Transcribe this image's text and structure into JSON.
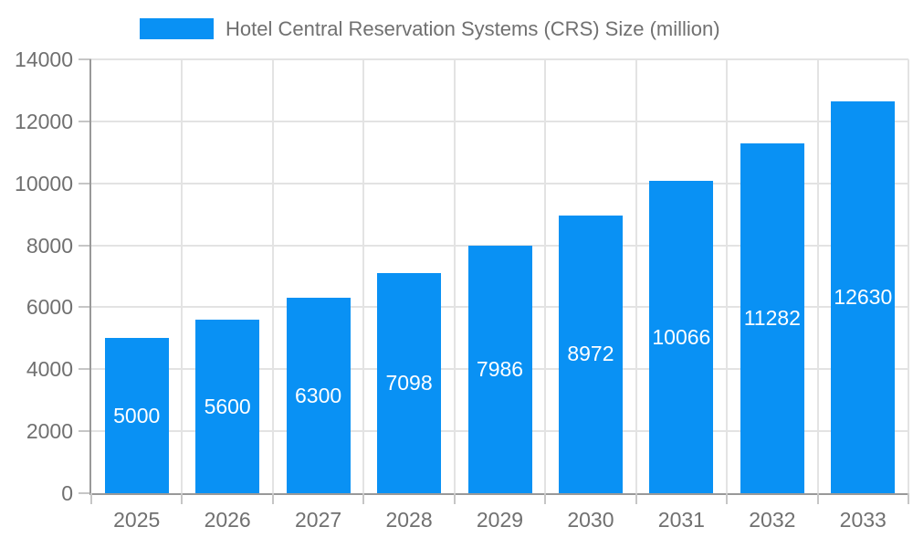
{
  "chart_data": {
    "type": "bar",
    "title": "Hotel Central Reservation Systems (CRS) Size (million)",
    "categories": [
      "2025",
      "2026",
      "2027",
      "2028",
      "2029",
      "2030",
      "2031",
      "2032",
      "2033"
    ],
    "values": [
      5000,
      5600,
      6300,
      7098,
      7986,
      8972,
      10066,
      11282,
      12630
    ],
    "xlabel": "",
    "ylabel": "",
    "ylim": [
      0,
      14000
    ],
    "yticks": [
      0,
      2000,
      4000,
      6000,
      8000,
      10000,
      12000,
      14000
    ],
    "grid": true,
    "legend_position": "top",
    "value_label_position": "inside-center"
  },
  "colors": {
    "bar": "#0991F4",
    "grid": "#E3E3E3",
    "axis": "#999999",
    "tick": "#C6C6C6",
    "tick_text": "#707070",
    "value_label": "#FFFFFF",
    "background": "#FFFFFF"
  }
}
